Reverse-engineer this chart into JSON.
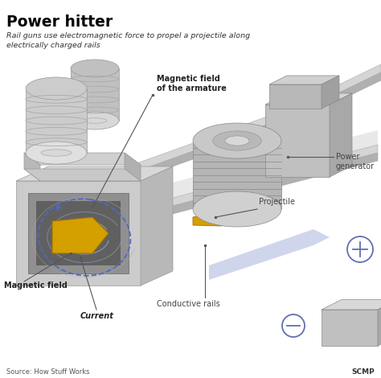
{
  "title": "Power hitter",
  "subtitle_line1": "Rail guns use electromagnetic force to propel a projectile along",
  "subtitle_line2": "electrically charged rails",
  "source": "Source: How Stuff Works",
  "credit": "SCMP",
  "labels": {
    "magnetic_field_armature": "Magnetic field\nof the armature",
    "power_generator": "Power\ngenerator",
    "magnetic_field": "Magnetic field",
    "current": "Current",
    "projectile": "Projectile",
    "conductive_rails": "Conductive rails"
  },
  "colors": {
    "background": "#ffffff",
    "rail_top": "#d5d5d5",
    "rail_side": "#b0b0b0",
    "rail_inner_gap": "#e5e5e5",
    "breech_front": "#cccccc",
    "breech_top": "#d8d8d8",
    "breech_side": "#b8b8b8",
    "barrel_dark": "#888888",
    "barrel_darker": "#707070",
    "armature_gold": "#d4a000",
    "armature_edge": "#a07000",
    "dashed_oval": "#4f6bbf",
    "blue_arrow": "#4f6bbf",
    "field_swirl": "#aabbdd",
    "cyl_body": "#cccccc",
    "cyl_top": "#e0e0e0",
    "cyl_band": "#aaaaaa",
    "gen_body": "#b0b0b0",
    "gen_ellipse": "#c8c8c8",
    "gen_box_front": "#c0c0c0",
    "gen_box_top": "#d8d8d8",
    "gen_box_side": "#aaaaaa",
    "light_blue_arrow": "#b0bce0",
    "plus_minus": "#6070b0",
    "endcap_front": "#c0c0c0",
    "endcap_top": "#d8d8d8",
    "endcap_side": "#a8a8a8",
    "text_title": "#000000",
    "text_subtitle": "#333333",
    "text_label_bold": "#222222",
    "text_label": "#444444",
    "text_source": "#555555",
    "line_connector": "#555555"
  }
}
